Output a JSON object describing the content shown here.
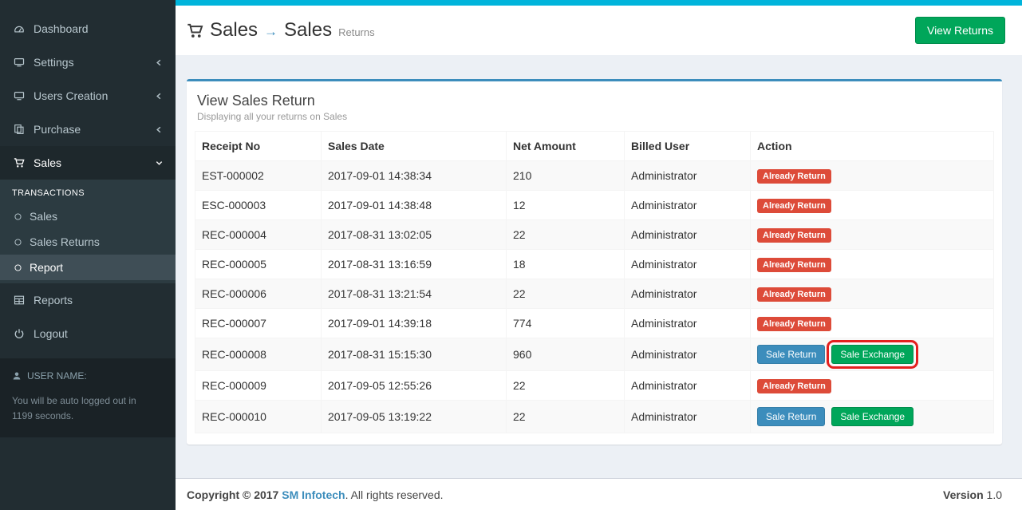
{
  "colors": {
    "topbar": "#00b4db",
    "sidebar-bg": "#222d32",
    "sidebar-sub-bg": "#2c3b41",
    "sidebar-active-bg": "#1e282c",
    "sidebar-text": "#b8c7ce",
    "accent-blue": "#3c8dbc",
    "accent-blue-border": "#367fa9",
    "accent-green": "#00a65a",
    "accent-green-border": "#008d4c",
    "badge-red": "#dd4b39",
    "annotation-red": "#e3201f",
    "content-bg": "#ecf0f5"
  },
  "sidebar": {
    "menu": [
      {
        "name": "dashboard",
        "label": "Dashboard",
        "icon": "dashboard-icon"
      },
      {
        "name": "settings",
        "label": "Settings",
        "icon": "monitor-icon",
        "chevron": "left"
      },
      {
        "name": "users-creation",
        "label": "Users Creation",
        "icon": "monitor-icon",
        "chevron": "left"
      },
      {
        "name": "purchase",
        "label": "Purchase",
        "icon": "copy-icon",
        "chevron": "left"
      },
      {
        "name": "sales",
        "label": "Sales",
        "icon": "cart-icon",
        "chevron": "down",
        "active": true,
        "submenu_header": "TRANSACTIONS",
        "submenu": [
          {
            "name": "sales",
            "label": "Sales"
          },
          {
            "name": "sales-returns",
            "label": "Sales Returns"
          },
          {
            "name": "report",
            "label": "Report",
            "highlight": true
          }
        ]
      },
      {
        "name": "reports",
        "label": "Reports",
        "icon": "table-icon"
      },
      {
        "name": "logout",
        "label": "Logout",
        "icon": "power-icon"
      }
    ],
    "user_label": "USER NAME:",
    "logout_note": "You will be auto logged out in 1199 seconds."
  },
  "header": {
    "section": "Sales",
    "arrow": "→",
    "page": "Sales",
    "page_sub": "Returns",
    "button": "View Returns"
  },
  "panel": {
    "title": "View Sales Return",
    "subtitle": "Displaying all your returns on Sales",
    "table": {
      "columns": [
        "Receipt No",
        "Sales Date",
        "Net Amount",
        "Billed User",
        "Action"
      ],
      "action_labels": {
        "already_return": "Already Return",
        "sale_return": "Sale Return",
        "sale_exchange": "Sale Exchange"
      },
      "rows": [
        {
          "receipt": "EST-000002",
          "date": "2017-09-01 14:38:34",
          "amount": "210",
          "user": "Administrator",
          "actions": [
            "already_return"
          ]
        },
        {
          "receipt": "ESC-000003",
          "date": "2017-09-01 14:38:48",
          "amount": "12",
          "user": "Administrator",
          "actions": [
            "already_return"
          ]
        },
        {
          "receipt": "REC-000004",
          "date": "2017-08-31 13:02:05",
          "amount": "22",
          "user": "Administrator",
          "actions": [
            "already_return"
          ]
        },
        {
          "receipt": "REC-000005",
          "date": "2017-08-31 13:16:59",
          "amount": "18",
          "user": "Administrator",
          "actions": [
            "already_return"
          ]
        },
        {
          "receipt": "REC-000006",
          "date": "2017-08-31 13:21:54",
          "amount": "22",
          "user": "Administrator",
          "actions": [
            "already_return"
          ]
        },
        {
          "receipt": "REC-000007",
          "date": "2017-09-01 14:39:18",
          "amount": "774",
          "user": "Administrator",
          "actions": [
            "already_return"
          ]
        },
        {
          "receipt": "REC-000008",
          "date": "2017-08-31 15:15:30",
          "amount": "960",
          "user": "Administrator",
          "actions": [
            "sale_return",
            "sale_exchange"
          ],
          "highlight_exchange": true
        },
        {
          "receipt": "REC-000009",
          "date": "2017-09-05 12:55:26",
          "amount": "22",
          "user": "Administrator",
          "actions": [
            "already_return"
          ]
        },
        {
          "receipt": "REC-000010",
          "date": "2017-09-05 13:19:22",
          "amount": "22",
          "user": "Administrator",
          "actions": [
            "sale_return",
            "sale_exchange"
          ]
        }
      ]
    }
  },
  "footer": {
    "copyright_prefix": "Copyright © 2017",
    "company": "SM Infotech",
    "rights": ". All rights reserved.",
    "version_label": "Version",
    "version_value": "1.0"
  }
}
